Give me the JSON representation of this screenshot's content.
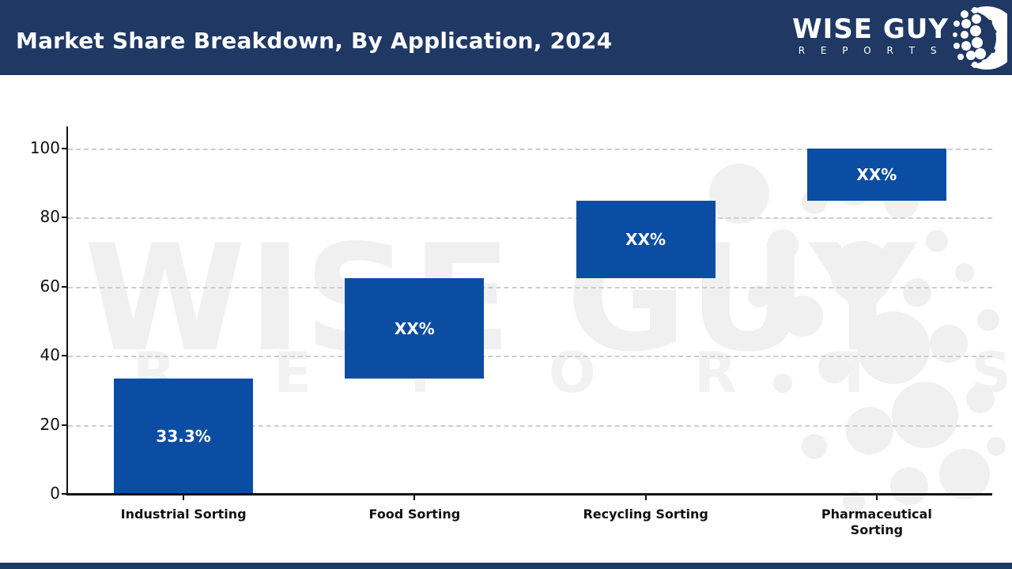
{
  "header": {
    "title": "Market Share Breakdown, By Application, 2024",
    "logo": {
      "line1": "WISE GUY",
      "line2": "R E P O R T S"
    }
  },
  "watermark": {
    "line1": "WISE GUY",
    "line2": "R E P O R T S"
  },
  "chart_data": {
    "type": "bar",
    "subtype": "waterfall-floating-segments",
    "title": "Market Share Breakdown, By Application, 2024",
    "categories": [
      "Industrial Sorting",
      "Food Sorting",
      "Recycling Sorting",
      "Pharmaceutical Sorting"
    ],
    "segments": [
      {
        "category": "Industrial Sorting",
        "start": 0,
        "end": 33.3,
        "label": "33.3%"
      },
      {
        "category": "Food Sorting",
        "start": 33.3,
        "end": 62.4,
        "label": "XX%"
      },
      {
        "category": "Recycling Sorting",
        "start": 62.4,
        "end": 85.0,
        "label": "XX%"
      },
      {
        "category": "Pharmaceutical Sorting",
        "start": 85.0,
        "end": 100.0,
        "label": "XX%"
      }
    ],
    "xlabel": "",
    "ylabel": "",
    "ylim": [
      0,
      100
    ],
    "yticks": [
      0,
      20,
      40,
      60,
      80,
      100
    ],
    "grid": "horizontal-dashed",
    "legend": "none",
    "colors": {
      "bar": "#0b4da2",
      "bar_label": "#ffffff",
      "header_bg": "#203864",
      "grid": "#cdcdcd",
      "axis": "#111111",
      "watermark": "#f0f0f0"
    }
  }
}
